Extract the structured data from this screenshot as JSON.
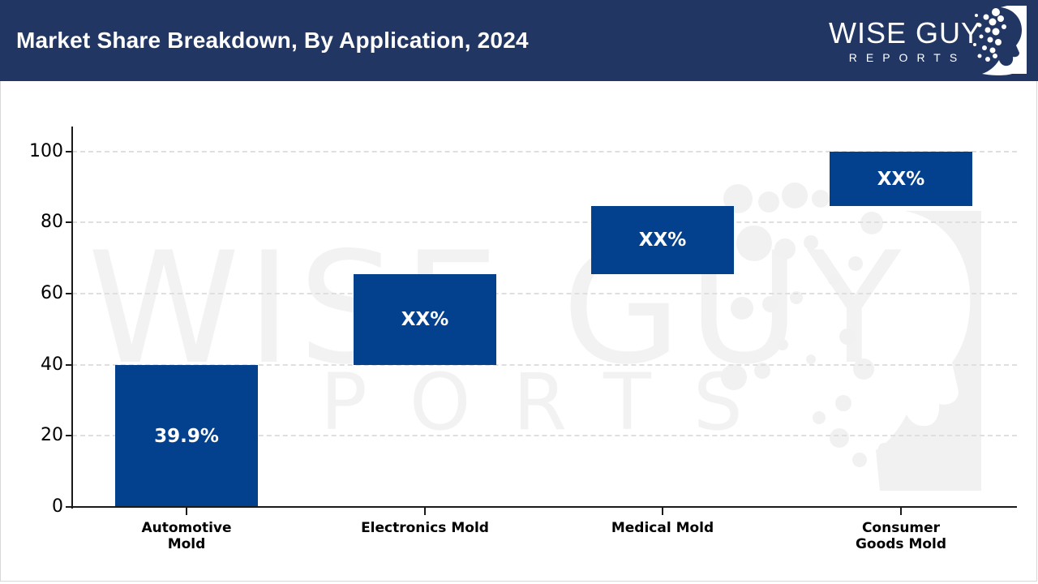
{
  "header": {
    "title": "Market Share Breakdown, By Application, 2024",
    "bg_color": "#213663",
    "logo": {
      "line1": "WISE GUY",
      "line2": "REPORTS"
    }
  },
  "watermark": {
    "line1": "WISE GUY",
    "line2": "PORTS"
  },
  "chart_data": {
    "type": "bar",
    "subtype": "floating-segment-waterfall",
    "title": "Market Share Breakdown, By Application, 2024",
    "categories": [
      "Automotive Mold",
      "Electronics Mold",
      "Medical Mold",
      "Consumer Goods Mold"
    ],
    "segments": [
      {
        "category": "Automotive Mold",
        "start": 0,
        "end": 39.9,
        "label": "39.9%"
      },
      {
        "category": "Electronics Mold",
        "start": 40,
        "end": 65.5,
        "label": "XX%"
      },
      {
        "category": "Medical Mold",
        "start": 65.5,
        "end": 84.5,
        "label": "XX%"
      },
      {
        "category": "Consumer Goods Mold",
        "start": 84.5,
        "end": 100,
        "label": "XX%"
      }
    ],
    "values_masked_note": "Only first bar value shown as 39.9%; others masked as XX%",
    "y_ticks": [
      0,
      20,
      40,
      60,
      80,
      100
    ],
    "ylim": [
      0,
      107
    ],
    "xlabel": "",
    "ylabel": "",
    "grid": "dashed horizontal",
    "legend": "none",
    "bar_color": "#03418f",
    "bar_label_color": "#ffffff",
    "axis_color": "#1a1a1a"
  }
}
